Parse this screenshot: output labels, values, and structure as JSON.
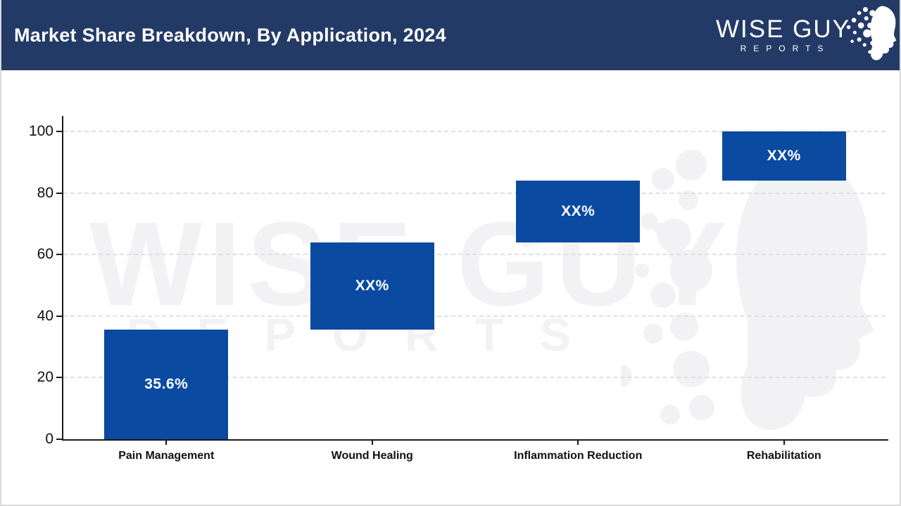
{
  "header": {
    "title": "Market Share Breakdown, By Application, 2024",
    "logo": {
      "brand": "WISE GUY",
      "tagline": "REPORTS"
    }
  },
  "watermark": {
    "brand": "WISE GUY",
    "tagline": "REPORTS"
  },
  "colors": {
    "header_bg": "#243a66",
    "bar": "#0a4aa0",
    "grid": "#e0e0e0",
    "axis": "#1a1a1a",
    "text": "#111111",
    "bar_label": "#ffffff",
    "watermark": "#f2f2f4",
    "title_text": "#ffffff"
  },
  "chart_data": {
    "type": "bar",
    "subtype": "waterfall",
    "title": "Market Share Breakdown, By Application, 2024",
    "categories": [
      "Pain Management",
      "Wound Healing",
      "Inflammation Reduction",
      "Rehabilitation"
    ],
    "segments": [
      {
        "label": "Pain Management",
        "start": 0,
        "end": 35.6,
        "value_label": "35.6%"
      },
      {
        "label": "Wound Healing",
        "start": 35.6,
        "end": 64,
        "value_label": "XX%"
      },
      {
        "label": "Inflammation Reduction",
        "start": 64,
        "end": 84,
        "value_label": "XX%"
      },
      {
        "label": "Rehabilitation",
        "start": 84,
        "end": 100,
        "value_label": "XX%"
      }
    ],
    "ylim": [
      0,
      100
    ],
    "yticks": [
      0,
      20,
      40,
      60,
      80,
      100
    ],
    "xlabel": "",
    "ylabel": "",
    "grid": "horizontal-dashed",
    "legend": "none"
  }
}
